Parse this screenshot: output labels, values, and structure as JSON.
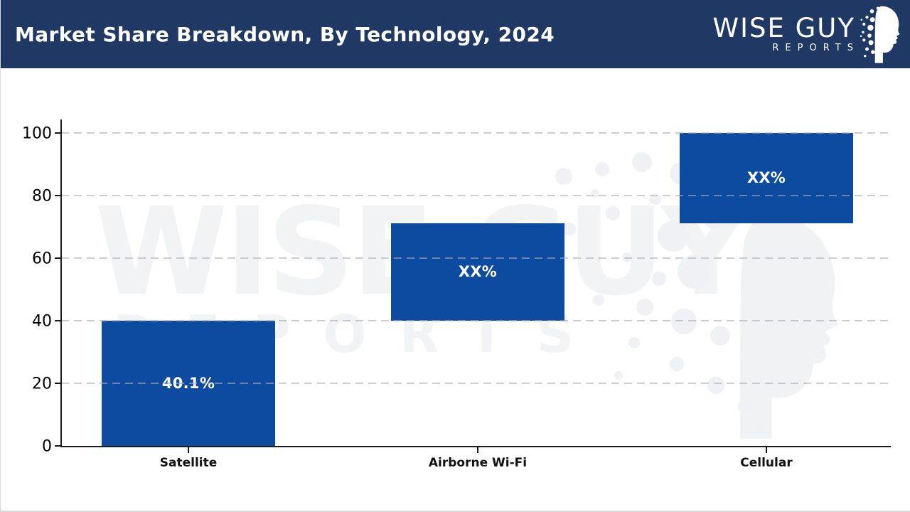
{
  "header": {
    "title": "Market Share Breakdown, By Technology, 2024",
    "logo": {
      "line1": "WISE GUY",
      "line2": "REPORTS"
    }
  },
  "watermark": {
    "line1": "WISE GUY",
    "line2": "REPORTS"
  },
  "colors": {
    "header_bg": "#203864",
    "bar": "#0d4ba1",
    "axis": "#1a1a1a",
    "grid_dash": "#d4d6da",
    "bar_label": "#ffffff",
    "watermark": "#f2f3f5"
  },
  "chart_data": {
    "type": "bar",
    "subtype": "waterfall",
    "title": "Market Share Breakdown, By Technology, 2024",
    "categories": [
      "Satellite",
      "Airborne Wi-Fi",
      "Cellular"
    ],
    "series": [
      {
        "name": "Market share (%)",
        "segments": [
          {
            "category": "Satellite",
            "start": 0,
            "end": 40.1,
            "label": "40.1%"
          },
          {
            "category": "Airborne Wi-Fi",
            "start": 40.1,
            "end": 71.2,
            "label": "XX%"
          },
          {
            "category": "Cellular",
            "start": 71.2,
            "end": 100,
            "label": "XX%"
          }
        ]
      }
    ],
    "ylim": [
      0,
      100
    ],
    "yticks": [
      0,
      20,
      40,
      60,
      80,
      100
    ],
    "xlabel": "",
    "ylabel": "",
    "grid": "horizontal-dashed",
    "legend": "none"
  }
}
